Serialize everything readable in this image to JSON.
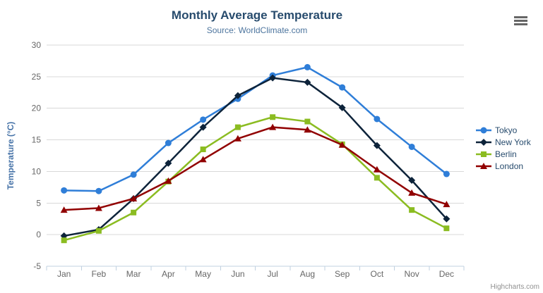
{
  "chart": {
    "credits": "Highcharts.com",
    "icons": {
      "context_menu": "hamburger-menu-icon"
    },
    "colors": {
      "title": "#274b6d",
      "subtitle": "#4d759e",
      "axis_title": "#4572a7",
      "tick_label": "#666666",
      "grid": "#d8d8d8",
      "axis_line": "#c0d0e0",
      "legend_text": "#274b6d",
      "credits": "#909090",
      "background": "#ffffff"
    }
  },
  "chart_data": {
    "type": "line",
    "title": "Monthly Average Temperature",
    "subtitle": "Source: WorldClimate.com",
    "xlabel": "",
    "ylabel": "Temperature (°C)",
    "categories": [
      "Jan",
      "Feb",
      "Mar",
      "Apr",
      "May",
      "Jun",
      "Jul",
      "Aug",
      "Sep",
      "Oct",
      "Nov",
      "Dec"
    ],
    "series": [
      {
        "name": "Tokyo",
        "color": "#2f7ed8",
        "marker": "circle",
        "values": [
          7.0,
          6.9,
          9.5,
          14.5,
          18.2,
          21.5,
          25.2,
          26.5,
          23.3,
          18.3,
          13.9,
          9.6
        ]
      },
      {
        "name": "New York",
        "color": "#0d233a",
        "marker": "diamond",
        "values": [
          -0.2,
          0.8,
          5.7,
          11.3,
          17.0,
          22.0,
          24.8,
          24.1,
          20.1,
          14.1,
          8.6,
          2.5
        ]
      },
      {
        "name": "Berlin",
        "color": "#8bbc21",
        "marker": "square",
        "values": [
          -0.9,
          0.6,
          3.5,
          8.4,
          13.5,
          17.0,
          18.6,
          17.9,
          14.3,
          9.0,
          3.9,
          1.0
        ]
      },
      {
        "name": "London",
        "color": "#910000",
        "marker": "triangle",
        "values": [
          3.9,
          4.2,
          5.7,
          8.5,
          11.9,
          15.2,
          17.0,
          16.6,
          14.2,
          10.3,
          6.6,
          4.8
        ]
      }
    ],
    "ylim": [
      -5,
      30
    ],
    "yticks": [
      -5,
      0,
      5,
      10,
      15,
      20,
      25,
      30
    ],
    "ytick_step": 5,
    "grid": "horizontal",
    "legend_position": "right-middle"
  }
}
